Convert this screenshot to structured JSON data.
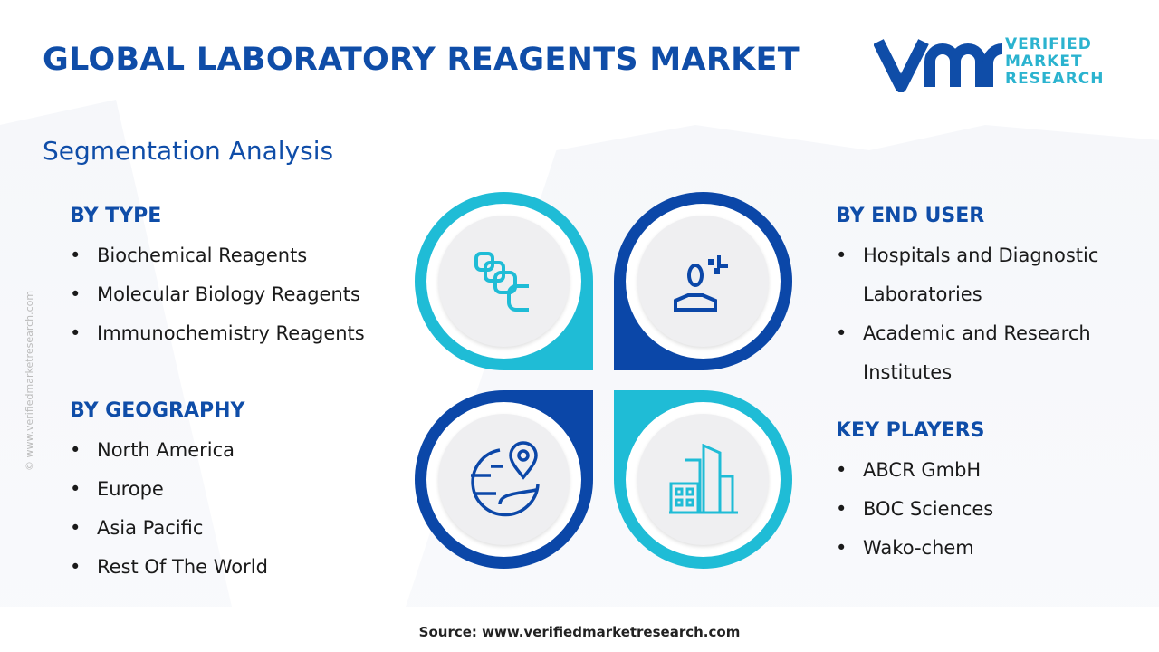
{
  "title": "GLOBAL LABORATORY REAGENTS MARKET",
  "logo": {
    "line1": "VERIFIED",
    "line2": "MARKET",
    "line3": "RESEARCH",
    "mark": "vmr",
    "registered": "®"
  },
  "subtitle": "Segmentation Analysis",
  "by_type": {
    "heading": "BY TYPE",
    "items": [
      "Biochemical Reagents",
      "Molecular Biology Reagents",
      "Immunochemistry Reagents"
    ]
  },
  "by_geography": {
    "heading": "BY GEOGRAPHY",
    "items": [
      "North America",
      "Europe",
      "Asia Pacific",
      "Rest Of The World"
    ]
  },
  "by_end_user": {
    "heading": "BY END USER",
    "items": [
      "Hospitals and Diagnostic Laboratories",
      "Academic and Research Institutes"
    ]
  },
  "key_players": {
    "heading": "KEY PLAYERS",
    "items": [
      "ABCR GmbH",
      "BOC Sciences",
      "Wako-chem"
    ]
  },
  "watermark": "© www.verifiedmarketresearch.com",
  "source": "Source: www.verifiedmarketresearch.com",
  "colors": {
    "navy": "#0f4da8",
    "cyan": "#1fbcd6",
    "dark_blue": "#0b47a8"
  },
  "icons": [
    "reagent-stack-icon",
    "user-icon",
    "globe-location-icon",
    "buildings-icon"
  ]
}
